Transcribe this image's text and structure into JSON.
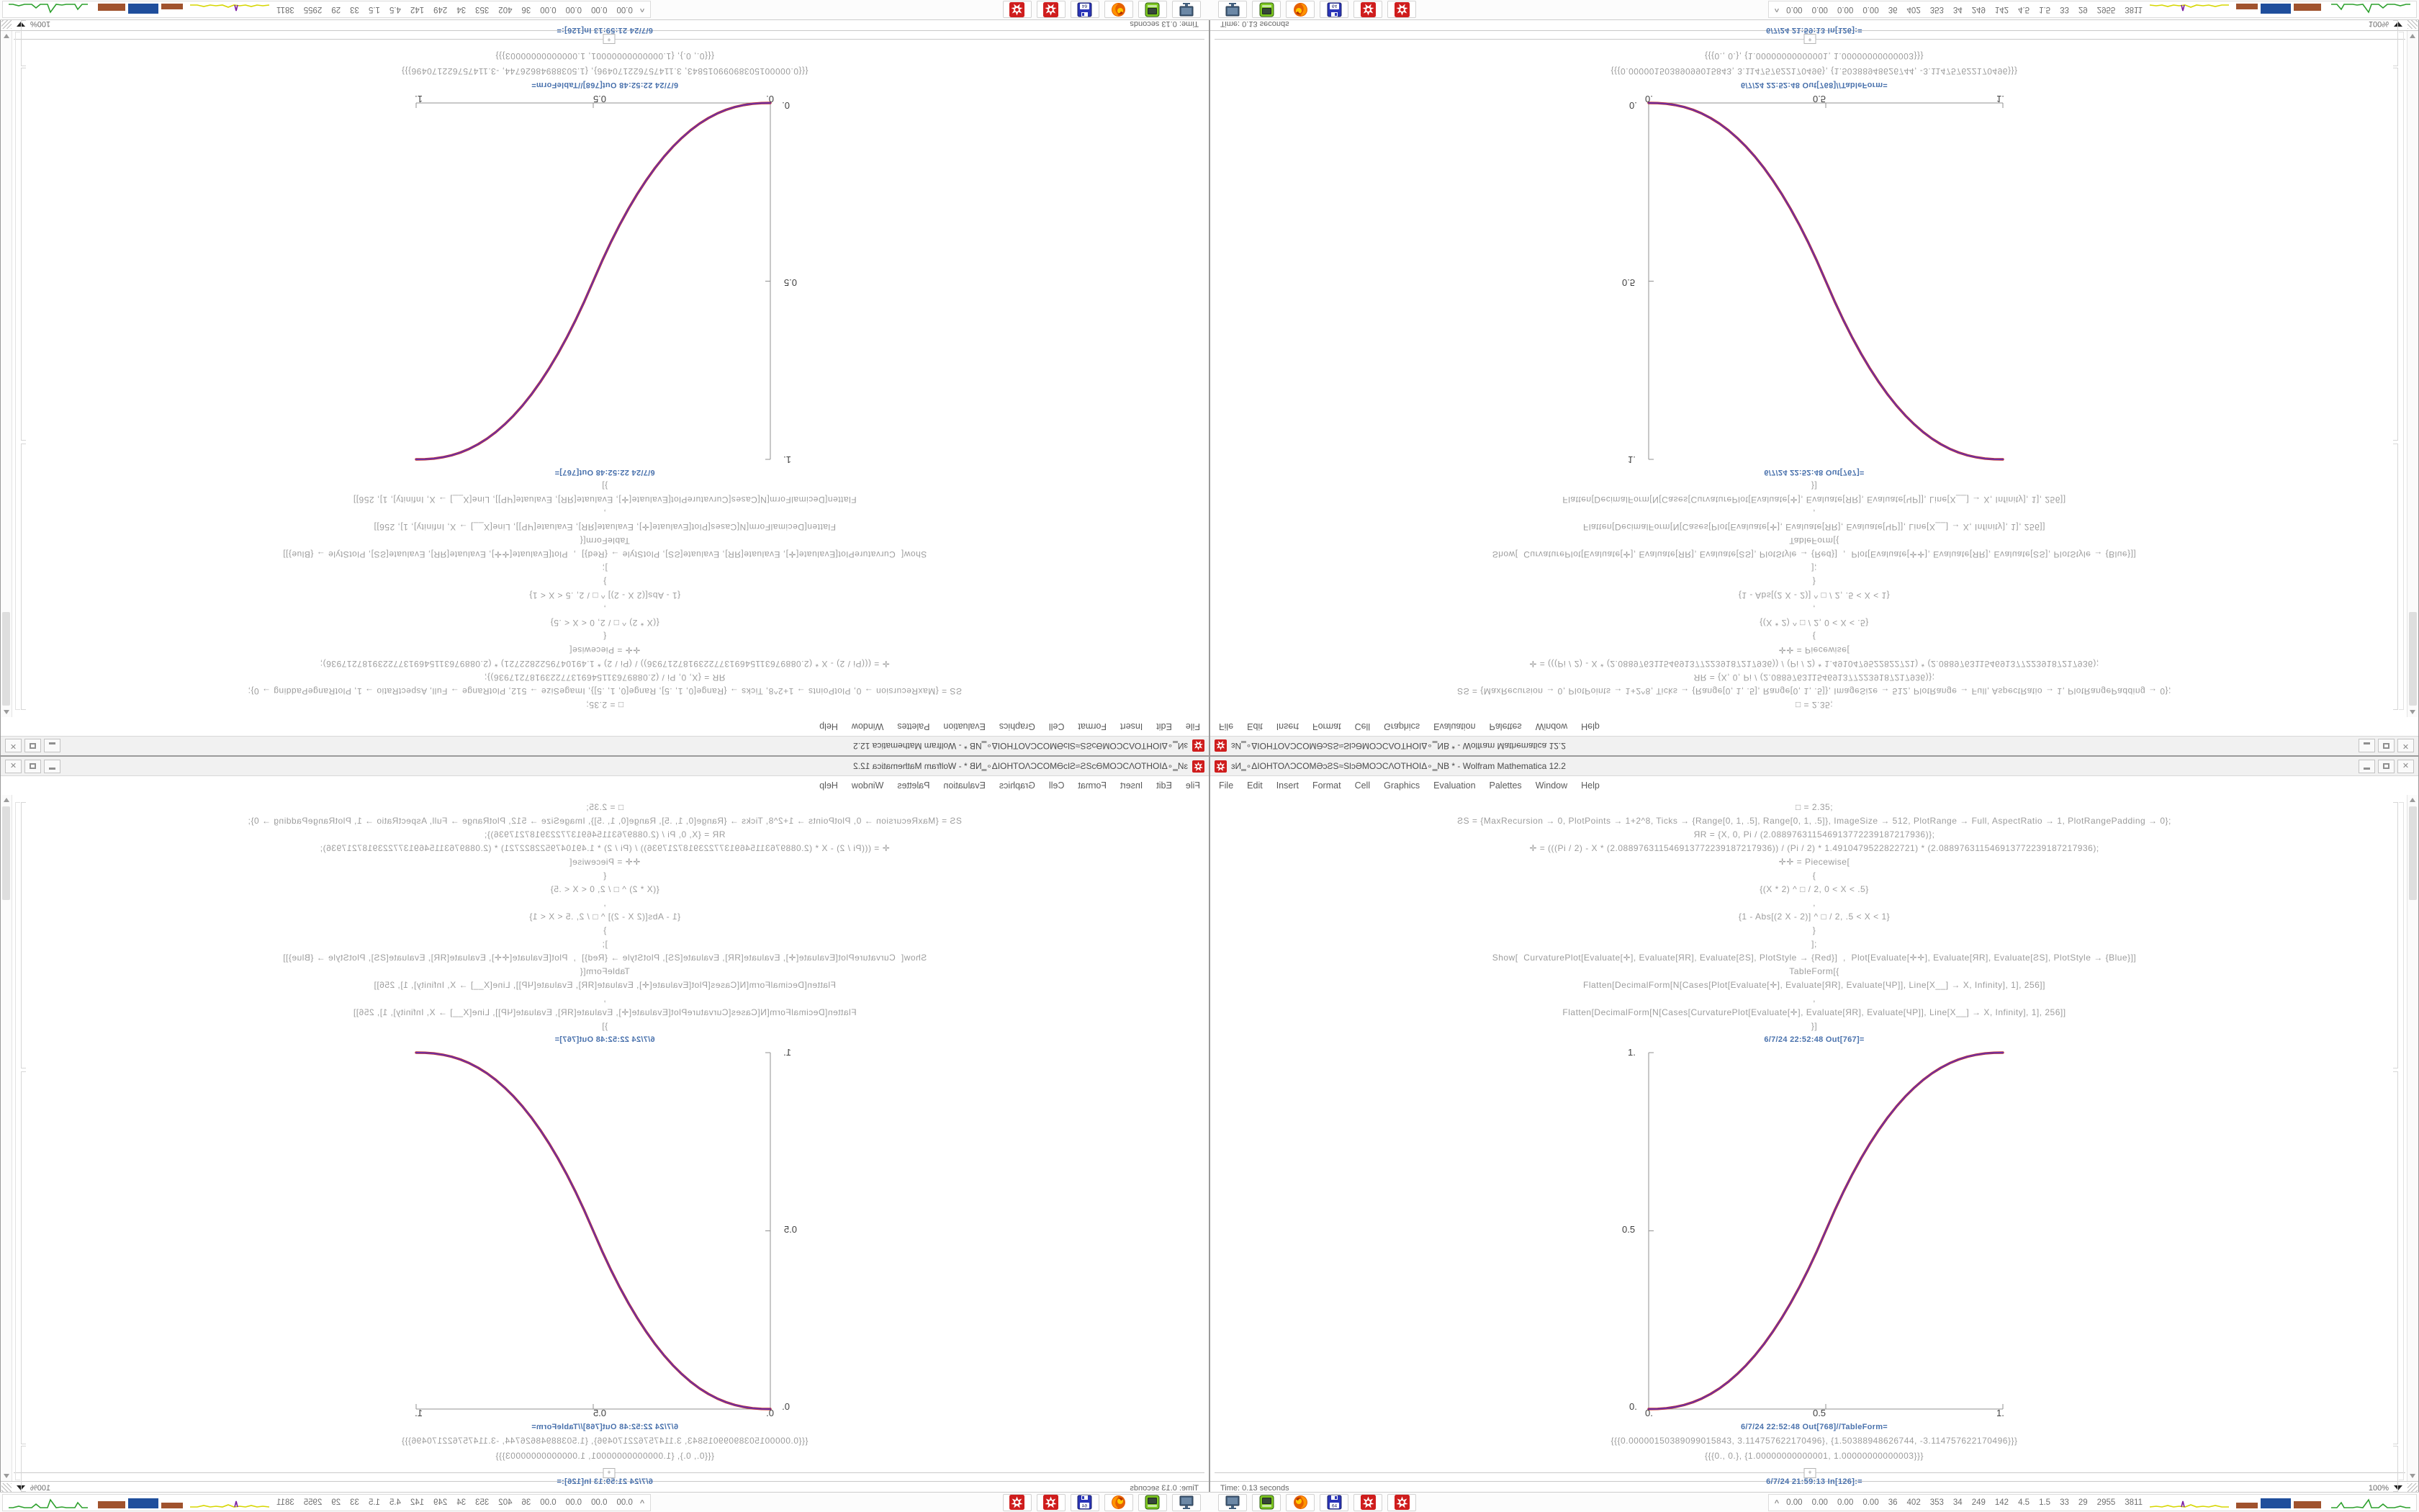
{
  "app": {
    "window_title": "ɜИ‗∘ΔΙΟΗΤΟΛϽCOMƏɔƧS≈SƖɔƏMOϽCΛΟΤΗΟΙΔ∘‗NB * - Wolfram Mathematica 12.2"
  },
  "window_controls": {
    "close_glyph": "✕"
  },
  "menu": {
    "items": [
      "File",
      "Edit",
      "Insert",
      "Format",
      "Cell",
      "Graphics",
      "Evaluation",
      "Palettes",
      "Window",
      "Help"
    ]
  },
  "notebook": {
    "input_lines": [
      "□ = 2.35;",
      "ƧS = {MaxRecursion → 0, PlotPoints → 1+2^8, Ticks → {Range[0, 1, .5], Range[0, 1, .5]}, ImageSize → 512, PlotRange → Full, AspectRatio → 1, PlotRangePadding → 0};",
      "ЯR = {X, 0, Pi / (2.088976311546913772239187217936)};",
      "✛ = (((Pi / 2) - X * (2.088976311546913772239187217936)) / (Pi / 2) * 1.4910479522822721) * (2.088976311546913772239187217936);",
      "✛✛ = Piecewise[",
      "{",
      "{(X * 2) ^ □ / 2, 0 < X < .5}",
      ",",
      "{1 - Abs[(2 X - 2)] ^ □ / 2, .5 < X < 1}",
      "}",
      "];",
      "Show[  CurvaturePlot[Evaluate[✛], Evaluate[ЯR], Evaluate[ƧS], PlotStyle → {Red}]  ,  Plot[Evaluate[✛✛], Evaluate[ЯR], Evaluate[ƧS], PlotStyle → {Blue}]]",
      "TableForm[{",
      "Flatten[DecimalForm[N[Cases[Plot[Evaluate[✛], Evaluate[ЯR], Evaluate[ЧP]], Line[X__] → X, Infinity], 1], 256]]",
      ",",
      "Flatten[DecimalForm[N[Cases[CurvaturePlot[Evaluate[✛], Evaluate[ЯR], Evaluate[ЧP]], Line[X__] → X, Infinity], 1], 256]]",
      "}]"
    ],
    "out_plot_label": "6/7/24 22:52:48 Out[767]=",
    "out_table_label": "6/7/24 22:52:48 Out[768]//TableForm=",
    "table_out_lines": [
      "{{{0.00000150389099015843, 3.114757622170496}, {1.50388948626744, -3.114757622170496}}}",
      "{{{0., 0.}, {1.00000000000001, 1.00000000000003}}}"
    ],
    "next_in_label": "6/7/24 21:59:13 In[126]:=",
    "insert_marker": "+"
  },
  "statusbar": {
    "time": "Time: 0.13 seconds",
    "zoom": "100%"
  },
  "taskbar": {
    "icons": [
      "display-icon",
      "virtualbox-icon",
      "firefox-icon",
      "floppy-64-icon",
      "mathematica-icon",
      "mathematica-icon"
    ],
    "floppy_label": "64",
    "tray_expander": "^",
    "tray_stats": [
      "0.00",
      "0.00",
      "0.00",
      "0.00",
      "36",
      "402",
      "353",
      "34",
      "249",
      "142",
      "4.5",
      "1.5",
      "33",
      "29",
      "2955",
      "3811"
    ]
  },
  "colors": {
    "accent_red": "#cf1d1d",
    "label_blue": "#4a72ad",
    "code_gray": "#9c9c9c",
    "curve_red": "#c03030",
    "curve_purple": "#6a2fa8",
    "curve_blue_series": "#2233bb"
  },
  "chart_data": {
    "type": "line",
    "title": "",
    "xlabel": "",
    "ylabel": "",
    "xlim": [
      0,
      1
    ],
    "ylim": [
      0,
      1
    ],
    "xticks": [
      "0.",
      "0.5",
      "1."
    ],
    "yticks": [
      "0.",
      "0.5",
      "1."
    ],
    "grid": false,
    "legend": false,
    "description": "Overlapping red CurvaturePlot and blue Plot of piecewise sigmoid y=(2x)^2.35/2 for 0<x<0.5, y=1-|2x-2|^2.35/2 for 0.5<x<1 (appears purple)",
    "x": [
      0,
      0.025,
      0.05,
      0.075,
      0.1,
      0.125,
      0.15,
      0.175,
      0.2,
      0.225,
      0.25,
      0.275,
      0.3,
      0.325,
      0.35,
      0.375,
      0.4,
      0.425,
      0.45,
      0.475,
      0.5,
      0.525,
      0.55,
      0.575,
      0.6,
      0.625,
      0.65,
      0.675,
      0.7,
      0.725,
      0.75,
      0.775,
      0.8,
      0.825,
      0.85,
      0.875,
      0.9,
      0.925,
      0.95,
      0.975,
      1
    ],
    "series": [
      {
        "name": "CurvaturePlot (Red)",
        "color": "#c03030",
        "values": [
          0,
          0.0004,
          0.0022,
          0.0058,
          0.0114,
          0.0192,
          0.0295,
          0.0424,
          0.058,
          0.0766,
          0.0981,
          0.1227,
          0.1505,
          0.1817,
          0.2163,
          0.2543,
          0.2959,
          0.3413,
          0.3904,
          0.4433,
          0.5,
          0.5567,
          0.6096,
          0.6587,
          0.7041,
          0.7457,
          0.7837,
          0.8183,
          0.8495,
          0.8773,
          0.9019,
          0.9234,
          0.942,
          0.9576,
          0.9705,
          0.9808,
          0.9886,
          0.9942,
          0.9978,
          0.9996,
          1
        ]
      },
      {
        "name": "Plot (Blue)",
        "color": "#2233bb",
        "values": [
          0,
          0.0004,
          0.0022,
          0.0058,
          0.0114,
          0.0192,
          0.0295,
          0.0424,
          0.058,
          0.0766,
          0.0981,
          0.1227,
          0.1505,
          0.1817,
          0.2163,
          0.2543,
          0.2959,
          0.3413,
          0.3904,
          0.4433,
          0.5,
          0.5567,
          0.6096,
          0.6587,
          0.7041,
          0.7457,
          0.7837,
          0.8183,
          0.8495,
          0.8773,
          0.9019,
          0.9234,
          0.942,
          0.9576,
          0.9705,
          0.9808,
          0.9886,
          0.9942,
          0.9978,
          0.9996,
          1
        ]
      }
    ]
  }
}
